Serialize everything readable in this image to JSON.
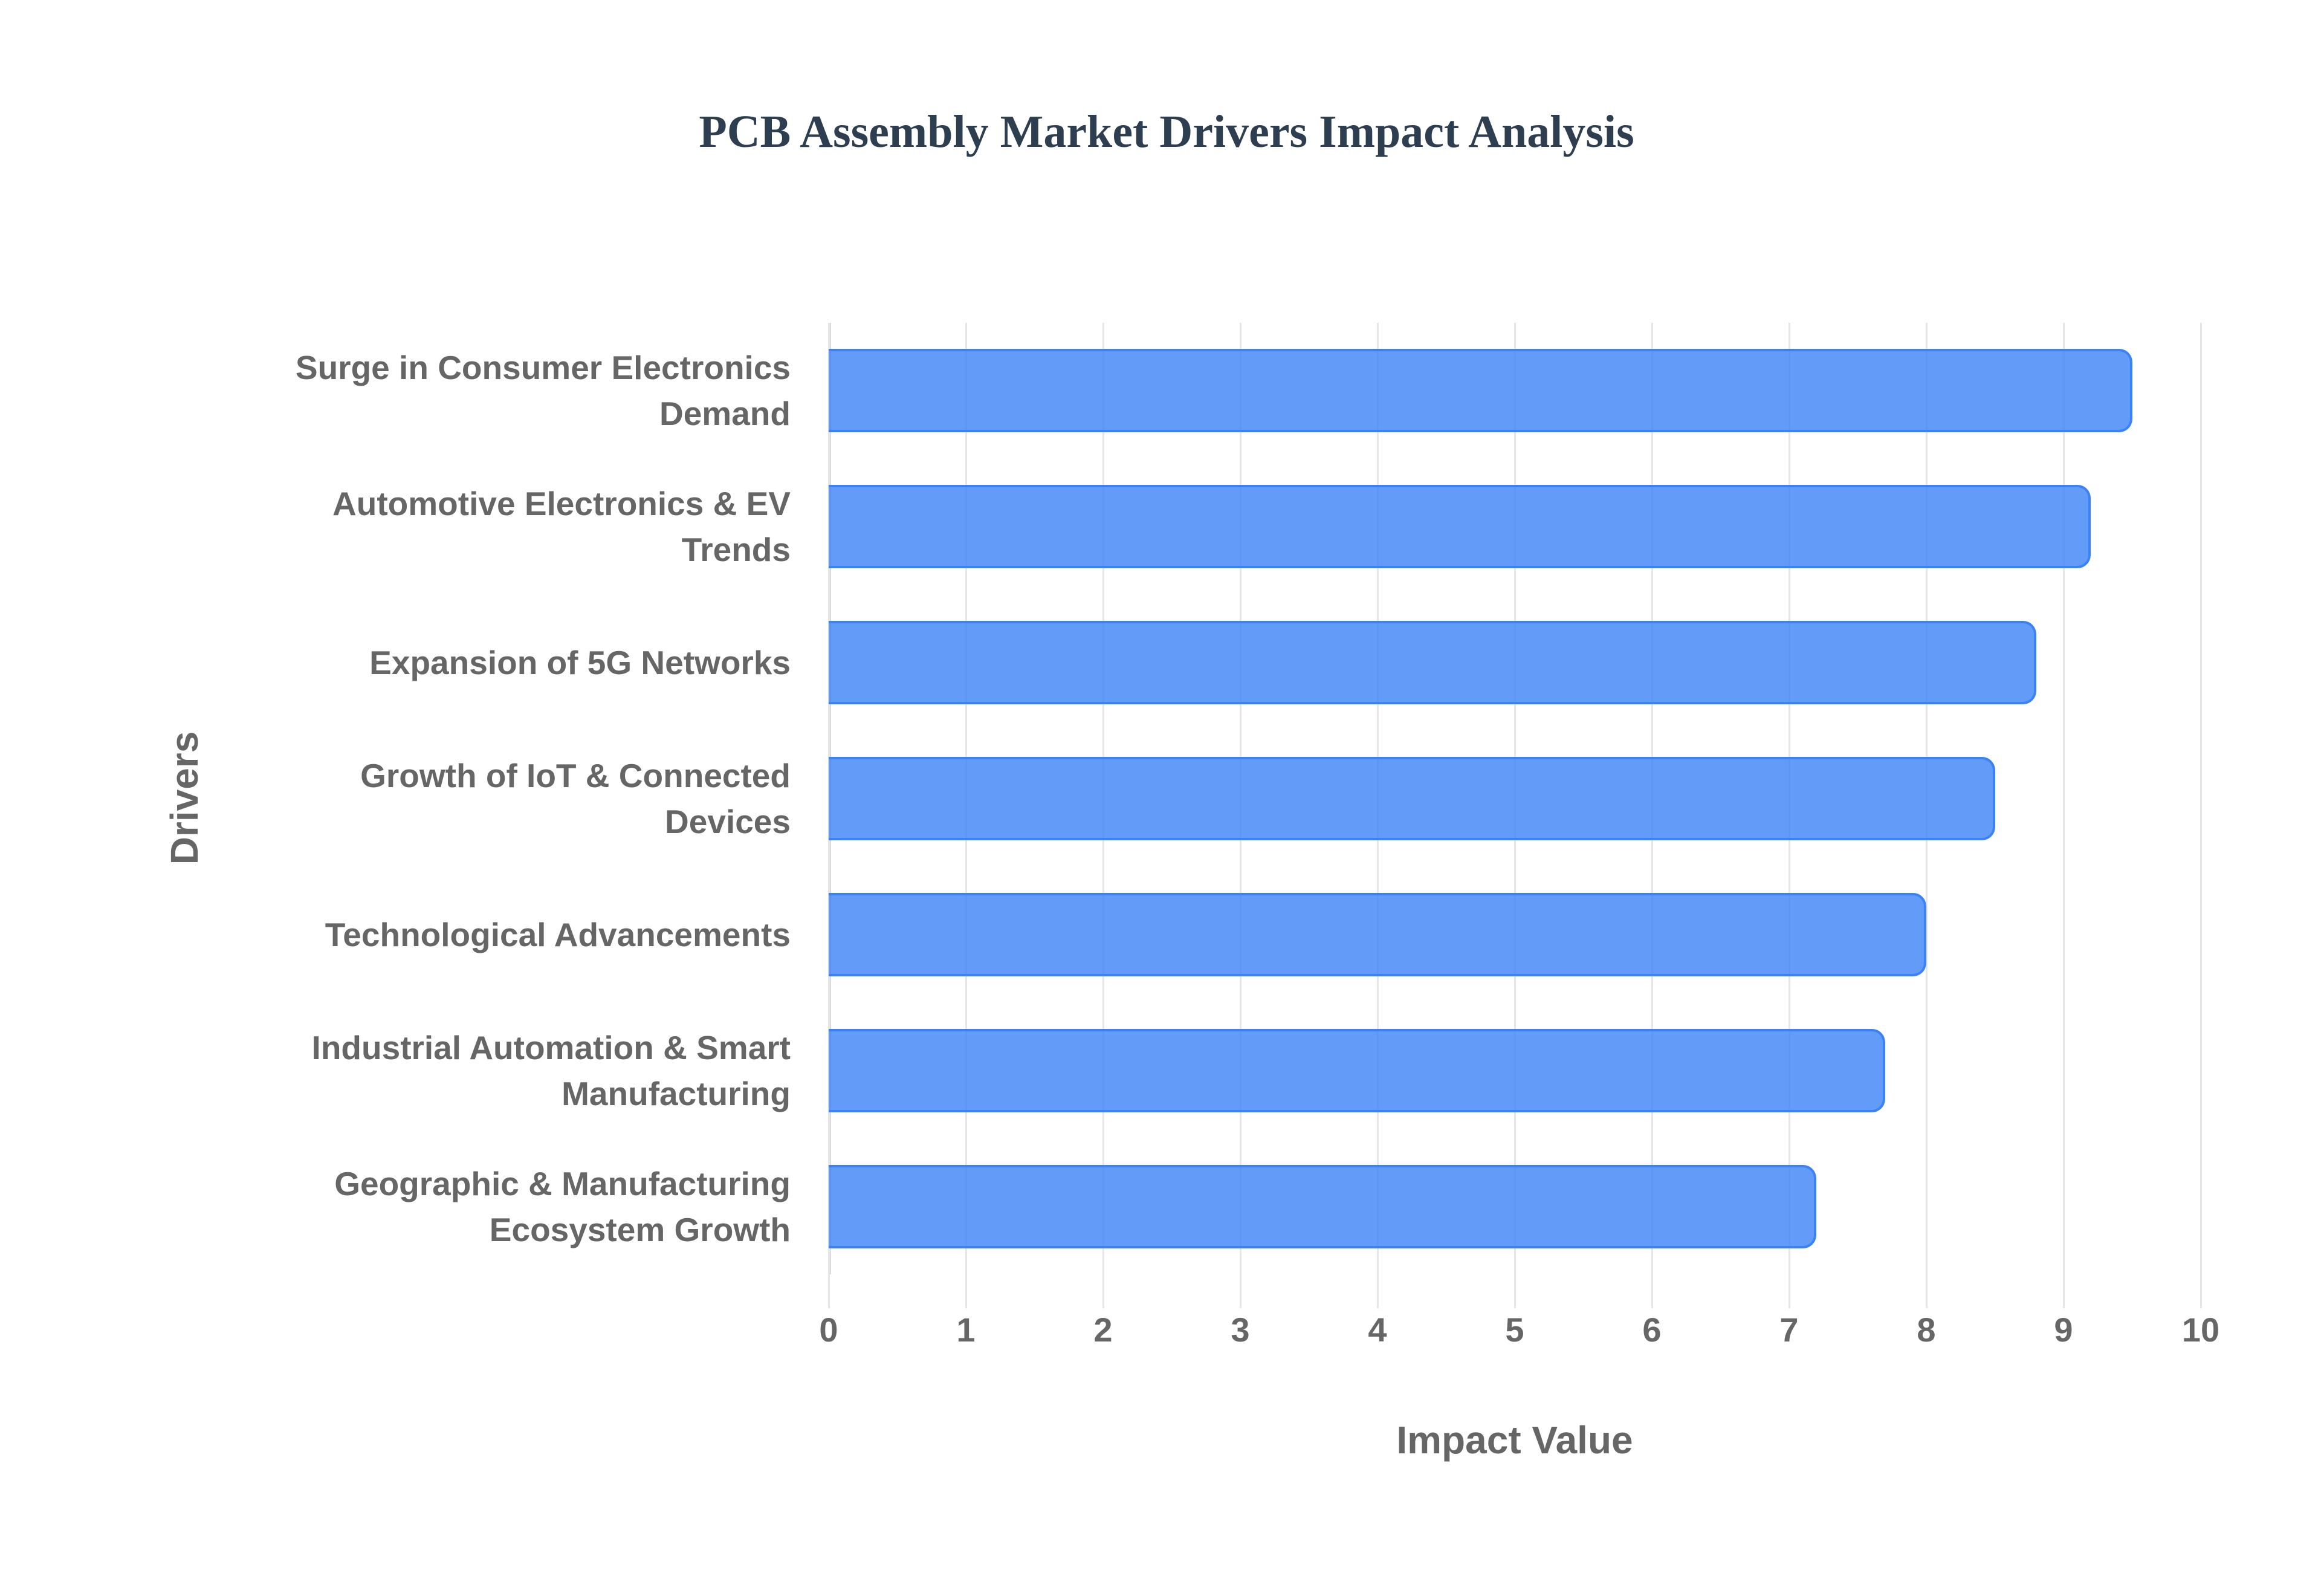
{
  "chart_data": {
    "type": "bar",
    "orientation": "horizontal",
    "title": "PCB Assembly Market Drivers Impact Analysis",
    "xlabel": "Impact Value",
    "ylabel": "Drivers",
    "xlim": [
      0,
      10
    ],
    "x_ticks": [
      "0",
      "1",
      "2",
      "3",
      "4",
      "5",
      "6",
      "7",
      "8",
      "9",
      "10"
    ],
    "grid": true,
    "legend": null,
    "categories": [
      "Surge in Consumer Electronics Demand",
      "Automotive Electronics & EV Trends",
      "Expansion of 5G Networks",
      "Growth of IoT & Connected Devices",
      "Technological Advancements",
      "Industrial Automation & Smart Manufacturing",
      "Geographic & Manufacturing Ecosystem Growth"
    ],
    "category_lines": [
      [
        "Surge in Consumer Electronics",
        "Demand"
      ],
      [
        "Automotive Electronics & EV",
        "Trends"
      ],
      [
        "Expansion of 5G Networks"
      ],
      [
        "Growth of IoT & Connected",
        "Devices"
      ],
      [
        "Technological Advancements"
      ],
      [
        "Industrial Automation & Smart",
        "Manufacturing"
      ],
      [
        "Geographic & Manufacturing",
        "Ecosystem Growth"
      ]
    ],
    "values": [
      9.5,
      9.2,
      8.8,
      8.5,
      8.0,
      7.7,
      7.2
    ],
    "colors": {
      "bar_fill": "#3b82f6",
      "bar_border": "#3b82f6",
      "title": "#2c3e50",
      "axis_text": "#666666",
      "grid": "#e6e6e6"
    }
  }
}
